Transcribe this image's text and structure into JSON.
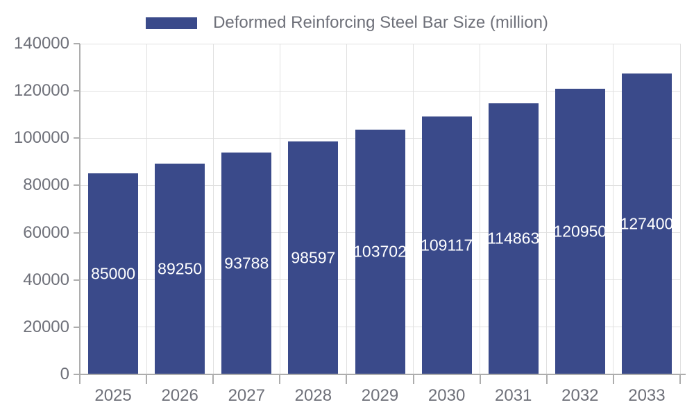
{
  "chart_data": {
    "type": "bar",
    "title": "Deformed Reinforcing Steel Bar Size (million)",
    "categories": [
      "2025",
      "2026",
      "2027",
      "2028",
      "2029",
      "2030",
      "2031",
      "2032",
      "2033"
    ],
    "values": [
      85000,
      89250,
      93788,
      98597,
      103702,
      109117,
      114863,
      120950,
      127400
    ],
    "bar_labels": [
      "85000",
      "89250",
      "93788",
      "98597",
      "103702",
      "109117",
      "114863",
      "120950",
      "127400"
    ],
    "xlabel": "",
    "ylabel": "",
    "ylim": [
      0,
      140000
    ],
    "ytick_interval": 20000,
    "ytick_labels": [
      "0",
      "20000",
      "40000",
      "60000",
      "80000",
      "100000",
      "120000",
      "140000"
    ],
    "grid": true,
    "legend_position": "top",
    "colors": {
      "bar": "#3A4A8A",
      "bar_label": "#FFFFFF",
      "grid_line": "#E0E0E0",
      "axis_line": "#ADADAD",
      "axis_label": "#6E7079",
      "legend_text": "#6E7079",
      "background": "#FFFFFF"
    }
  },
  "legend": {
    "label": "Deformed Reinforcing Steel Bar Size (million)"
  }
}
